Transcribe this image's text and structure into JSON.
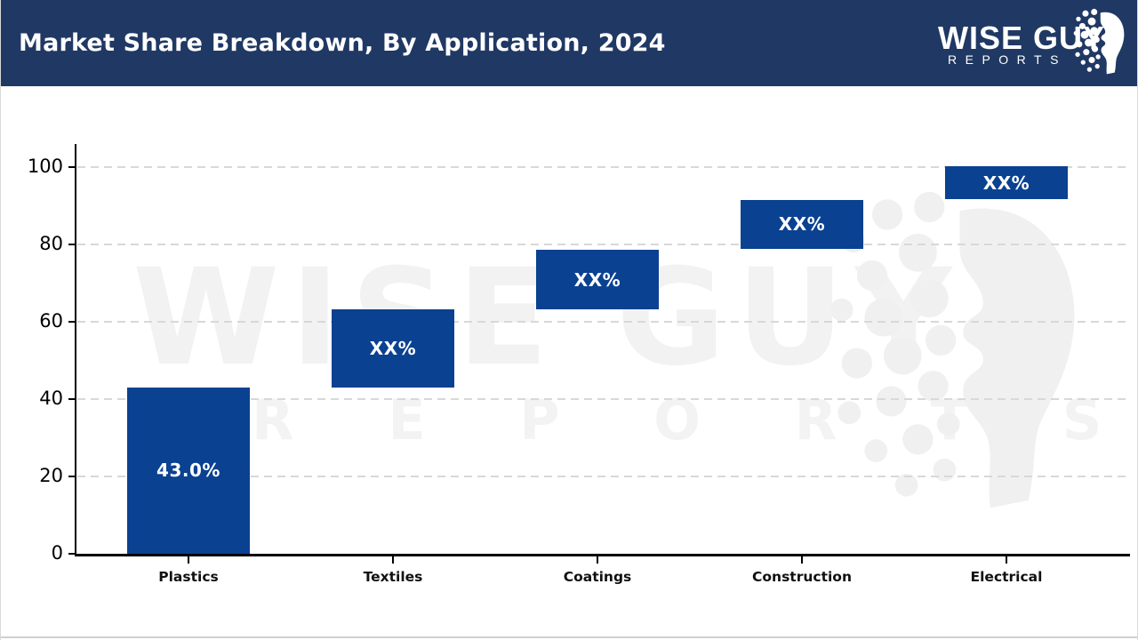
{
  "colors": {
    "header_bg": "#203864",
    "title_text": "#ffffff",
    "bar_fill": "#0a4191",
    "bar_label_text": "#ffffff",
    "axis": "#000000",
    "gridline": "#d8d8d8",
    "watermark": "#f2f2f2"
  },
  "header": {
    "title": "Market Share Breakdown, By Application, 2024",
    "logo": {
      "line1": "WISE GUY",
      "line2": "REPORTS",
      "head_icon": "dotted-face-profile"
    }
  },
  "watermark": {
    "line1": "WISE GUY",
    "line2": "R E P O R T S",
    "head_icon": "dotted-face-profile"
  },
  "chart_data": {
    "type": "bar",
    "subtype": "waterfall",
    "title": "Market Share Breakdown, By Application, 2024",
    "xlabel": "",
    "ylabel": "",
    "categories": [
      "Plastics",
      "Textiles",
      "Coatings",
      "Construction",
      "Electrical"
    ],
    "segments": [
      {
        "category": "Plastics",
        "start": 0,
        "end": 43,
        "label": "43.0%"
      },
      {
        "category": "Textiles",
        "start": 43,
        "end": 63.2,
        "label": "XX%"
      },
      {
        "category": "Coatings",
        "start": 63.2,
        "end": 78.6,
        "label": "XX%"
      },
      {
        "category": "Construction",
        "start": 78.9,
        "end": 91.5,
        "label": "XX%"
      },
      {
        "category": "Electrical",
        "start": 91.7,
        "end": 100.2,
        "label": "XX%"
      }
    ],
    "yticks": [
      0,
      20,
      40,
      60,
      80,
      100
    ],
    "ylim": [
      0,
      106
    ],
    "grid": "horizontal-dashed",
    "legend": "none"
  }
}
